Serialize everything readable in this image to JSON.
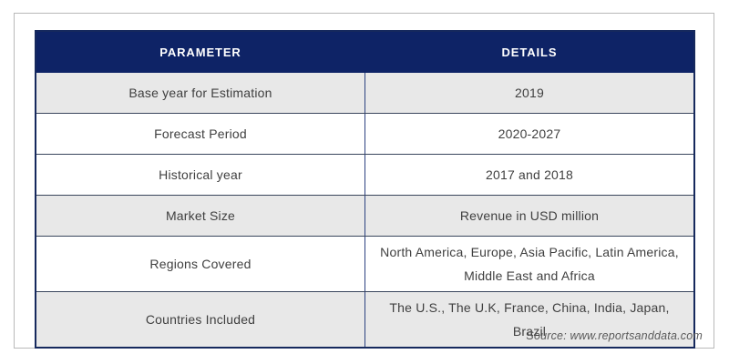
{
  "colors": {
    "header_bg": "#0e2366",
    "header_text": "#ffffff",
    "row_shaded_bg": "#e8e8e8",
    "row_plain_bg": "#ffffff",
    "body_text": "#3f3f3f",
    "border_outer": "#16295d",
    "border_inner": "#39455c",
    "divider_vertical": "#2c4180",
    "frame_border": "#b9b9b9",
    "source_text": "#5a5a5a"
  },
  "table": {
    "headers": [
      {
        "label": "PARAMETER"
      },
      {
        "label": "DETAILS"
      }
    ],
    "rows": [
      {
        "parameter": "Base year for Estimation",
        "details": "2019",
        "shaded": true
      },
      {
        "parameter": "Forecast Period",
        "details": "2020-2027",
        "shaded": false
      },
      {
        "parameter": "Historical year",
        "details": "2017 and 2018",
        "shaded": false
      },
      {
        "parameter": "Market Size",
        "details": "Revenue in USD million",
        "shaded": true
      },
      {
        "parameter": "Regions Covered",
        "details": "North America, Europe, Asia Pacific, Latin America, Middle East and Africa",
        "shaded": false
      },
      {
        "parameter": "Countries Included",
        "details": "The U.S., The U.K, France, China, India, Japan, Brazil",
        "shaded": true
      }
    ]
  },
  "footer": {
    "source": "Source: www.reportsanddata.com"
  },
  "chart_data": {
    "type": "table",
    "title": "",
    "columns": [
      "PARAMETER",
      "DETAILS"
    ],
    "rows": [
      [
        "Base year for Estimation",
        "2019"
      ],
      [
        "Forecast Period",
        "2020-2027"
      ],
      [
        "Historical year",
        "2017 and 2018"
      ],
      [
        "Market Size",
        "Revenue in USD million"
      ],
      [
        "Regions Covered",
        "North America, Europe, Asia Pacific, Latin America, Middle East and Africa"
      ],
      [
        "Countries Included",
        "The U.S., The U.K, France, China, India, Japan, Brazil"
      ]
    ],
    "annotations": [
      "Source: www.reportsanddata.com"
    ]
  }
}
